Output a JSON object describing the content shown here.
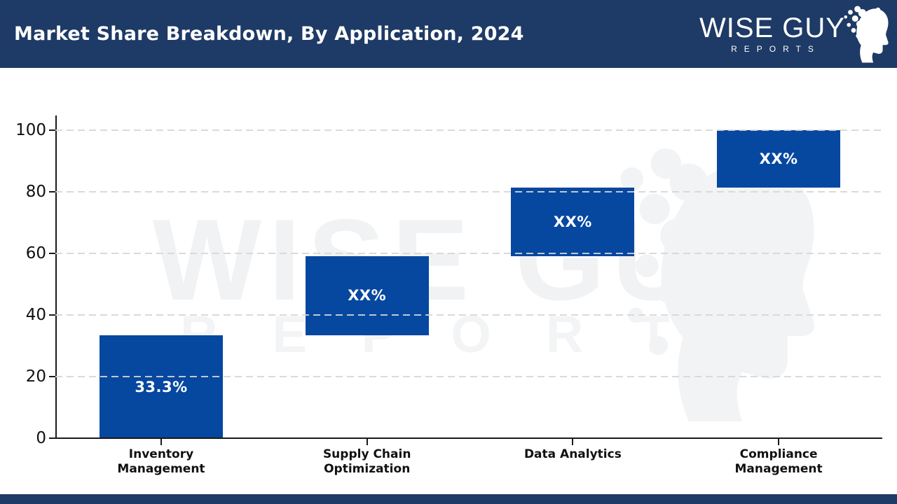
{
  "header": {
    "title": "Market Share Breakdown, By Application, 2024",
    "logo": {
      "brand_line1": "WISE GUY",
      "brand_line2": "REPORTS"
    }
  },
  "watermark": {
    "line1": "WISE GUY",
    "line2": "REPORTS"
  },
  "colors": {
    "header_navy": "#1e3a66",
    "footer_navy": "#1e3a66",
    "bar_blue": "#0647a0",
    "gridline": "#d6d6d6",
    "axis": "#1a1a1a",
    "watermark_gray": "#f1f2f4",
    "bar_label_text": "#ffffff",
    "tick_text": "#111111"
  },
  "chart_data": {
    "type": "bar",
    "variant": "waterfall",
    "title": "Market Share Breakdown, By Application, 2024",
    "xlabel": "",
    "ylabel": "",
    "ylim": [
      0,
      105
    ],
    "yticks": [
      0,
      20,
      40,
      60,
      80,
      100
    ],
    "grid": "horizontal-dashed",
    "legend": "none",
    "categories": [
      {
        "label": "Inventory Management",
        "lines": [
          "Inventory",
          "Management"
        ]
      },
      {
        "label": "Supply Chain Optimization",
        "lines": [
          "Supply Chain",
          "Optimization"
        ]
      },
      {
        "label": "Data Analytics",
        "lines": [
          "Data Analytics"
        ]
      },
      {
        "label": "Compliance Management",
        "lines": [
          "Compliance",
          "Management"
        ]
      }
    ],
    "segments": [
      {
        "category": "Inventory Management",
        "start": 0,
        "end": 33.3,
        "label": "33.3%"
      },
      {
        "category": "Supply Chain Optimization",
        "start": 33.3,
        "end": 59.2,
        "label": "XX%"
      },
      {
        "category": "Data Analytics",
        "start": 59.2,
        "end": 81.4,
        "label": "XX%"
      },
      {
        "category": "Compliance Management",
        "start": 81.4,
        "end": 100,
        "label": "XX%"
      }
    ]
  }
}
